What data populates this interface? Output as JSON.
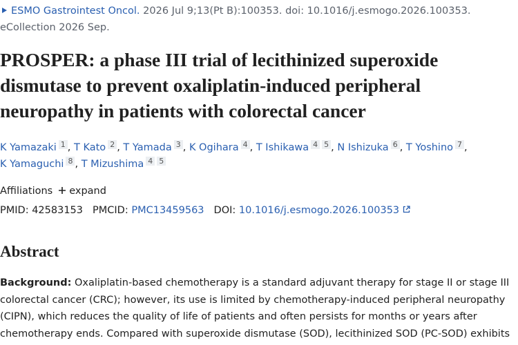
{
  "citation": {
    "journal": "ESMO Gastrointest Oncol.",
    "details": "2026 Jul 9;13(Pt B):100353. doi: 10.1016/j.esmogo.2026.100353. eCollection 2026 Sep."
  },
  "title": "PROSPER: a phase III trial of lecithinized superoxide dismutase to prevent oxaliplatin-induced peripheral neuropathy in patients with colorectal cancer",
  "authors": [
    {
      "name": "K Yamazaki",
      "affiliations": [
        "1"
      ]
    },
    {
      "name": "T Kato",
      "affiliations": [
        "2"
      ]
    },
    {
      "name": "T Yamada",
      "affiliations": [
        "3"
      ]
    },
    {
      "name": "K Ogihara",
      "affiliations": [
        "4"
      ]
    },
    {
      "name": "T Ishikawa",
      "affiliations": [
        "4",
        "5"
      ]
    },
    {
      "name": "N Ishizuka",
      "affiliations": [
        "6"
      ]
    },
    {
      "name": "T Yoshino",
      "affiliations": [
        "7"
      ]
    },
    {
      "name": "K Yamaguchi",
      "affiliations": [
        "8"
      ]
    },
    {
      "name": "T Mizushima",
      "affiliations": [
        "4",
        "5"
      ]
    }
  ],
  "affiliations": {
    "label": "Affiliations",
    "toggle": "expand"
  },
  "ids": [
    {
      "label": "PMID:",
      "value": "42583153"
    },
    {
      "label": "PMCID:",
      "value": "PMC13459563"
    },
    {
      "label": "DOI:",
      "value": "10.1016/j.esmogo.2026.100353"
    }
  ],
  "abstract": {
    "heading": "Abstract",
    "sections": [
      {
        "label": "Background:",
        "text": "Oxaliplatin-based chemotherapy is a standard adjuvant therapy for stage II or stage III colorectal cancer (CRC); however, its use is limited by chemotherapy-induced peripheral neuropathy (CIPN), which reduces the quality of life of patients and often persists for months or years after chemotherapy ends. Compared with superoxide dismutase (SOD), lecithinized SOD (PC-SOD) exhibits"
      }
    ]
  }
}
